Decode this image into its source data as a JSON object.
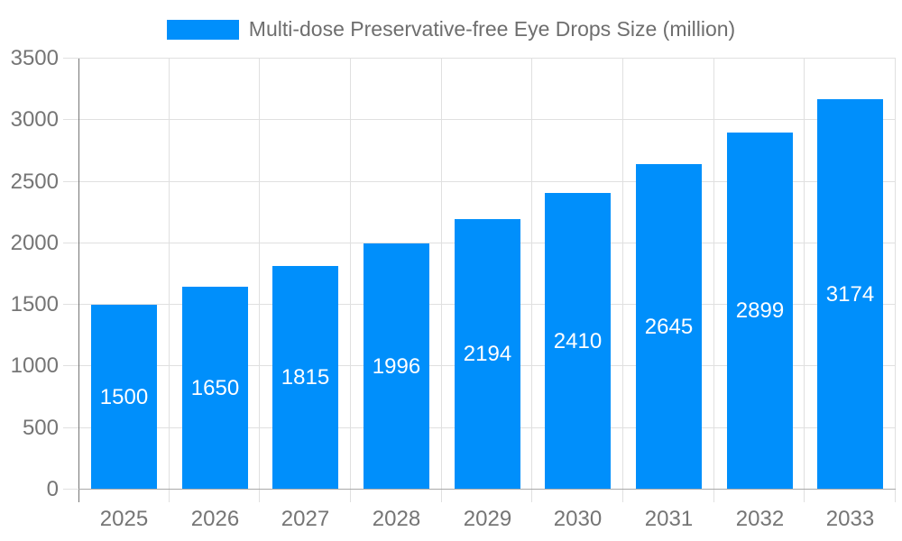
{
  "chart_data": {
    "type": "bar",
    "title": "Multi-dose Preservative-free Eye Drops Size (million)",
    "categories": [
      "2025",
      "2026",
      "2027",
      "2028",
      "2029",
      "2030",
      "2031",
      "2032",
      "2033"
    ],
    "values": [
      1500,
      1650,
      1815,
      1996,
      2194,
      2410,
      2645,
      2899,
      3174
    ],
    "series": [
      {
        "name": "Multi-dose Preservative-free Eye Drops Size (million)",
        "values": [
          1500,
          1650,
          1815,
          1996,
          2194,
          2410,
          2645,
          2899,
          3174
        ]
      }
    ],
    "xlabel": "",
    "ylabel": "",
    "ylim": [
      0,
      3500
    ],
    "yticks": [
      0,
      500,
      1000,
      1500,
      2000,
      2500,
      3000,
      3500
    ],
    "grid": true,
    "legend_position": "top",
    "bar_color": "#008FFB",
    "value_label_color": "#FFFFFF",
    "title_color": "#6e6e6e",
    "axis_label_color": "#757575",
    "grid_color": "#e0e0e0",
    "y_axis_line_color": "#757575",
    "x_axis_line_color": "#a9a9a9"
  }
}
